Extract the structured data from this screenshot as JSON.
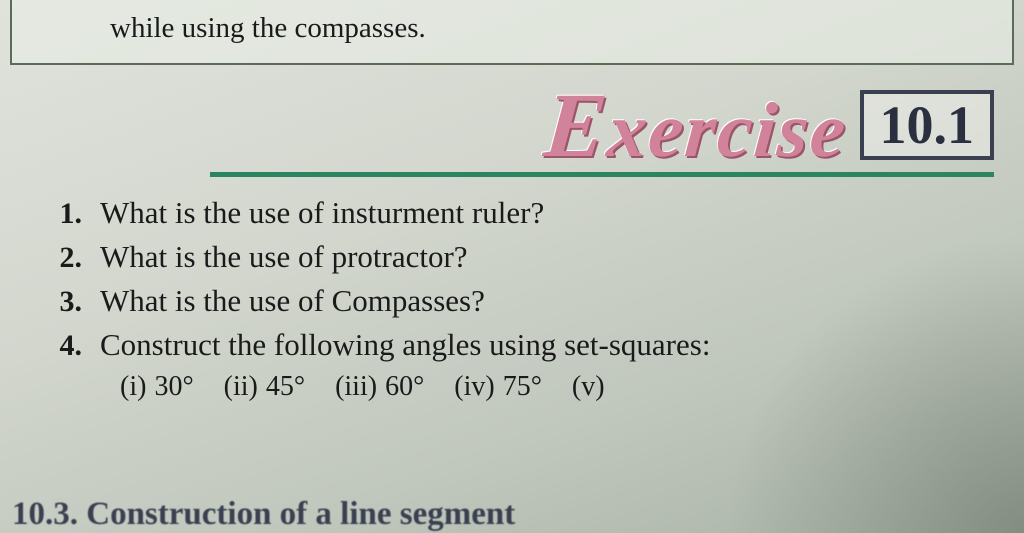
{
  "top_fragment": "while using the compasses.",
  "heading": {
    "word": "xercise",
    "cap": "E",
    "number": "10.1",
    "underline_color": "#2a8560",
    "word_color": "#d0839a",
    "box_border_color": "#3a4050"
  },
  "questions": [
    {
      "num": "1.",
      "text": "What is the use of insturment ruler?"
    },
    {
      "num": "2.",
      "text": "What is the use of protractor?"
    },
    {
      "num": "3.",
      "text": "What is the use of Compasses?"
    },
    {
      "num": "4.",
      "text": "Construct the following angles using set-squares:"
    }
  ],
  "options": [
    {
      "label": "(i)",
      "value": "30°"
    },
    {
      "label": "(ii)",
      "value": "45°"
    },
    {
      "label": "(iii)",
      "value": "60°"
    },
    {
      "label": "(iv)",
      "value": "75°"
    },
    {
      "label": "(v)",
      "value": ""
    }
  ],
  "bottom_heading": "10.3. Construction of a line segment",
  "colors": {
    "page_bg_start": "#e0e3dc",
    "page_bg_end": "#a8b2a5",
    "text": "#1a1a1a",
    "box_border": "#5a6b58"
  },
  "typography": {
    "body_fontsize": 31,
    "number_fontsize": 30,
    "heading_fontsize": 78,
    "box_number_fontsize": 54,
    "option_fontsize": 28
  }
}
